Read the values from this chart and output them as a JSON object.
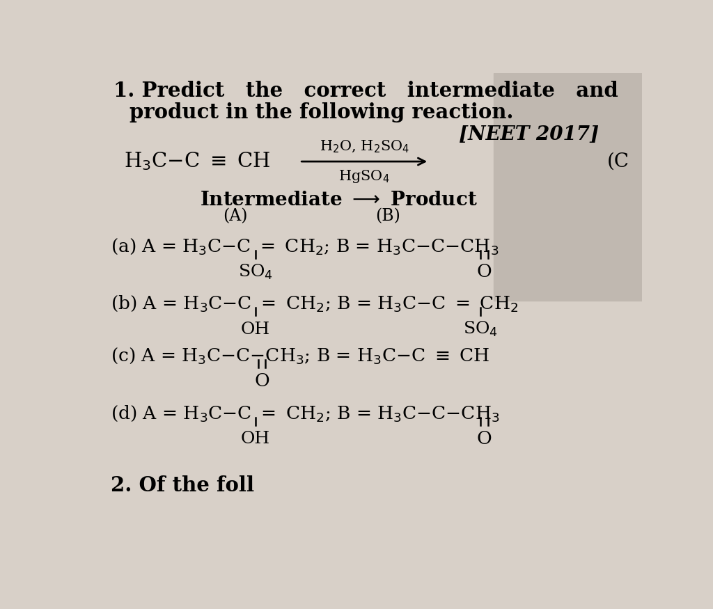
{
  "background_color": "#d8d0c8",
  "text_color": "#000000",
  "title_line1": "1. Predict   the   correct   intermediate   and",
  "title_line2": "product in the following reaction.",
  "neet_ref": "[NEET 2017]",
  "reaction_reactant": "H$_3$C$-$C $\\equiv$ CH",
  "reagent_top": "H$_2$O, H$_2$SO$_4$",
  "reagent_bottom": "HgSO$_4$",
  "partial_right": "(C",
  "intermediate_line": "Intermediate $\\longrightarrow$ Product",
  "A_label": "(A)",
  "B_label": "(B)",
  "opt_a_main": "(a) A = H$_3$C$-$C $=$ CH$_2$; B = H$_3$C$-$C$-$CH$_3$",
  "opt_a_sub_A": "SO$_4$",
  "opt_a_sub_B": "O",
  "opt_b_main": "(b) A = H$_3$C$-$C $=$ CH$_2$; B = H$_3$C$-$C $=$ CH$_2$",
  "opt_b_sub_A": "OH",
  "opt_b_sub_B": "SO$_4$",
  "opt_c_main": "(c) A = H$_3$C$-$C$-$CH$_3$; B = H$_3$C$-$C $\\equiv$ CH",
  "opt_c_sub_A": "O",
  "opt_d_main": "(d) A = H$_3$C$-$C $=$ CH$_2$; B = H$_3$C$-$C$-$CH$_3$",
  "opt_d_sub_A": "OH",
  "opt_d_sub_B": "O",
  "bottom_text": "2. Of the foll",
  "font_size_title": 20,
  "font_size_body": 19,
  "font_size_small": 15,
  "font_size_opt": 19
}
